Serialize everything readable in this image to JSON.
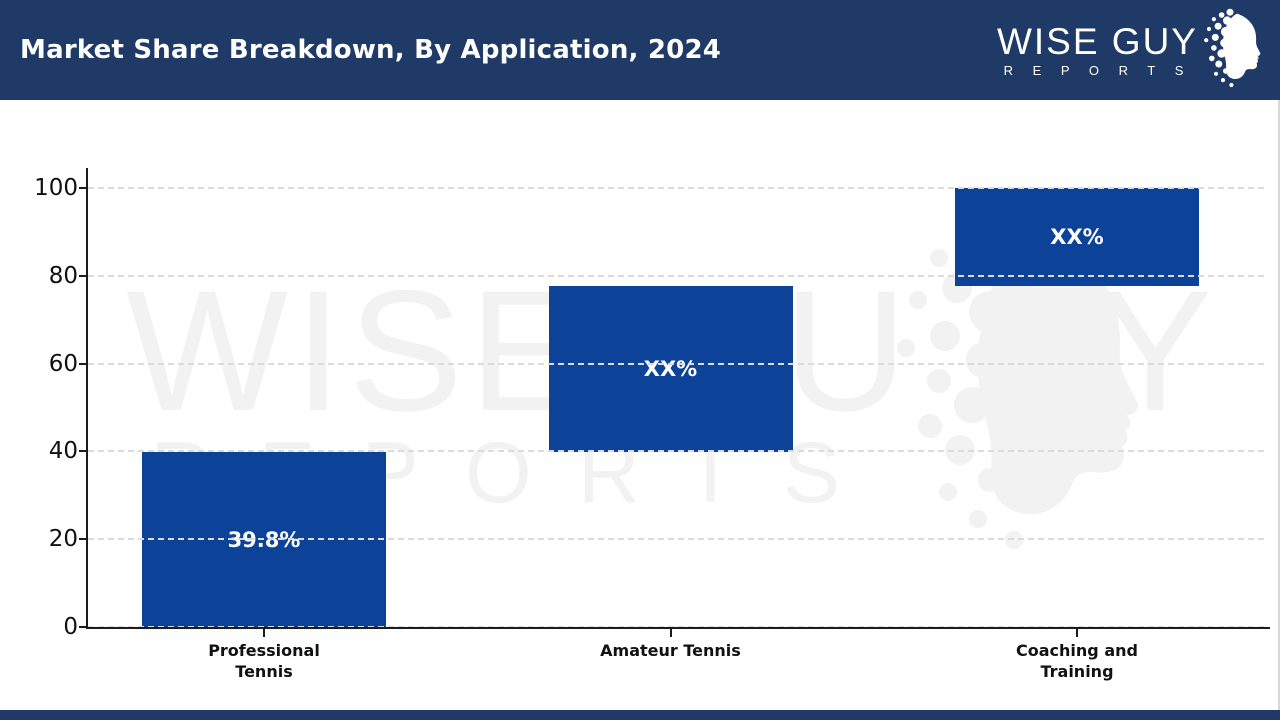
{
  "header": {
    "title": "Market Share Breakdown, By Application, 2024",
    "bg_color": "#1F3A66",
    "logo": {
      "line1": "WISE GUY",
      "line2": "R E P O R T S",
      "face_icon": "dotted-head-profile"
    }
  },
  "watermark": {
    "big_text": "WISE GU",
    "big_text_y": "Y",
    "small_text": "REPORTS",
    "color": "#F2F2F2"
  },
  "chart_data": {
    "type": "bar",
    "subtype": "waterfall-stacked-percentage",
    "title": "Market Share Breakdown, By Application, 2024",
    "categories": [
      "Professional Tennis",
      "Amateur Tennis",
      "Coaching and Training"
    ],
    "category_lines": [
      [
        "Professional",
        "Tennis"
      ],
      [
        "Amateur Tennis"
      ],
      [
        "Coaching and",
        "Training"
      ]
    ],
    "segments": [
      {
        "category": "Professional Tennis",
        "start": 0,
        "end": 39.8,
        "label": "39.8%"
      },
      {
        "category": "Amateur Tennis",
        "start": 39.8,
        "end": 77.6,
        "label": "XX%"
      },
      {
        "category": "Coaching and Training",
        "start": 77.6,
        "end": 100,
        "label": "XX%"
      }
    ],
    "xlabel": "",
    "ylabel": "",
    "ylim": [
      0,
      100
    ],
    "yticks": [
      0,
      20,
      40,
      60,
      80,
      100
    ],
    "grid": "horizontal-dashed",
    "legend": "none",
    "bar_color": "#0C4399",
    "label_color": "#FFFFFF",
    "axis_color": "#1C1C1C",
    "grid_color": "#DBDBDB"
  },
  "footer": {
    "bg_color": "#1F3A66"
  }
}
